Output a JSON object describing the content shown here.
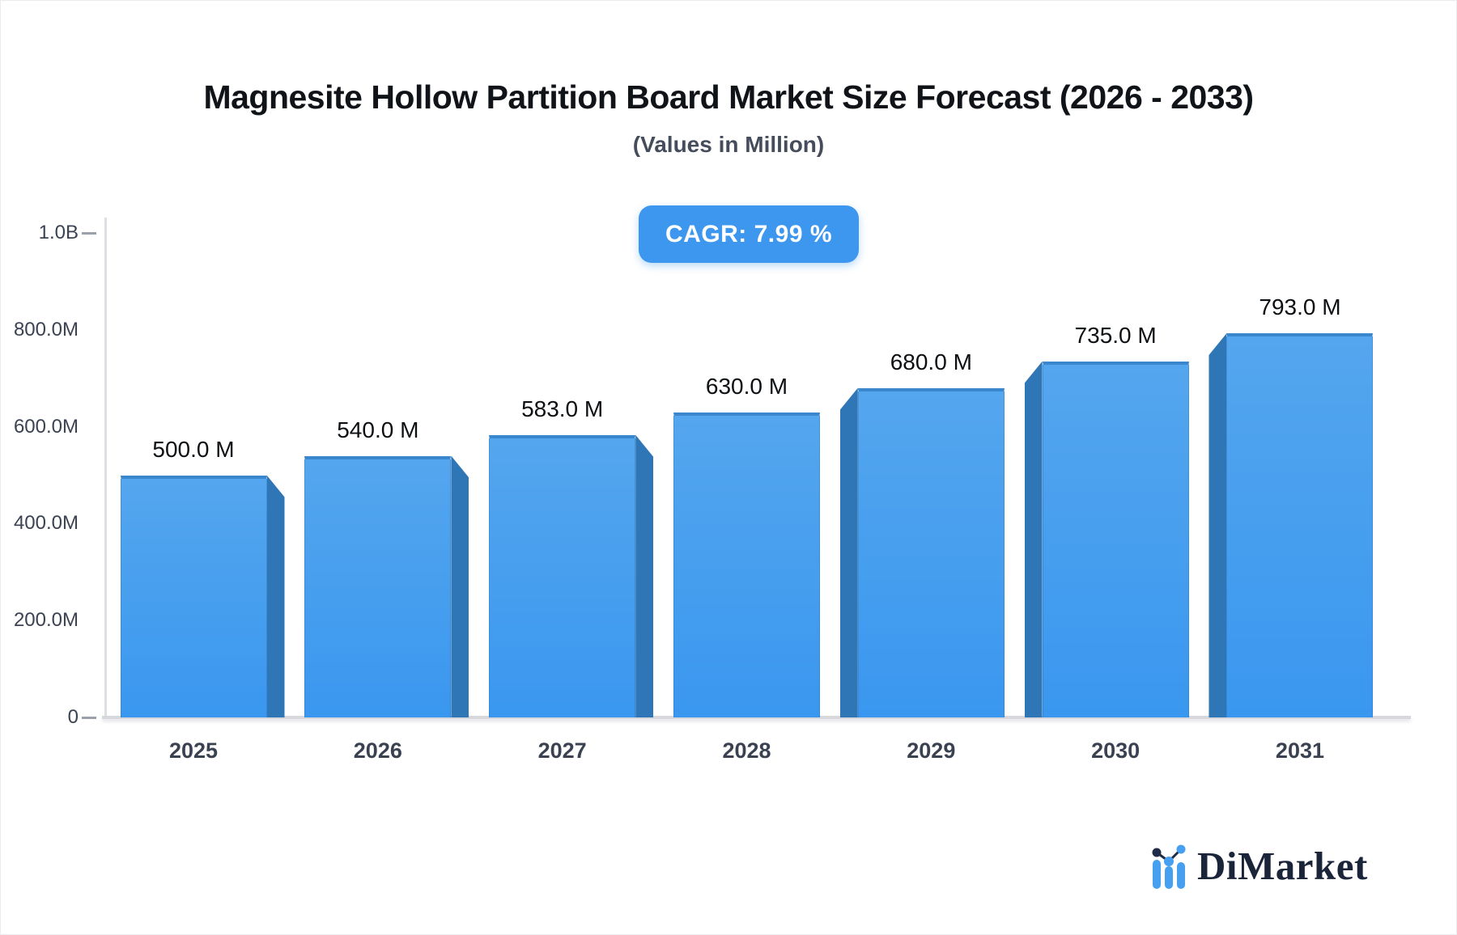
{
  "chart_data": {
    "type": "bar",
    "title": "Magnesite Hollow Partition Board Market Size Forecast (2026 - 2033)",
    "subtitle": "(Values in Million)",
    "cagr_badge": "CAGR: 7.99 %",
    "categories": [
      "2025",
      "2026",
      "2027",
      "2028",
      "2029",
      "2030",
      "2031"
    ],
    "values": [
      500,
      540,
      583,
      630,
      680,
      735,
      793
    ],
    "value_labels": [
      "500.0 M",
      "540.0 M",
      "583.0 M",
      "630.0 M",
      "680.0 M",
      "735.0 M",
      "793.0 M"
    ],
    "ylim": [
      0,
      1000
    ],
    "y_ticks": [
      {
        "value": 0,
        "label": "0"
      },
      {
        "value": 200,
        "label": "200.0M"
      },
      {
        "value": 400,
        "label": "400.0M"
      },
      {
        "value": 600,
        "label": "600.0M"
      },
      {
        "value": 800,
        "label": "800.0M"
      },
      {
        "value": 1000,
        "label": "1.0B"
      }
    ],
    "grid": false,
    "legend": false,
    "bar_style": {
      "face_top": "#54a6ee",
      "face_bottom": "#3a97ef",
      "top_edge": "#3a87ce",
      "side_face": "#2e76b6"
    },
    "accent_color": "#3e97ee"
  },
  "branding": {
    "logo_text": "DiMarket",
    "icon": "mini-bar-chart-trendline-icon",
    "navy": "#1b2539",
    "blue": "#46a0ef"
  }
}
